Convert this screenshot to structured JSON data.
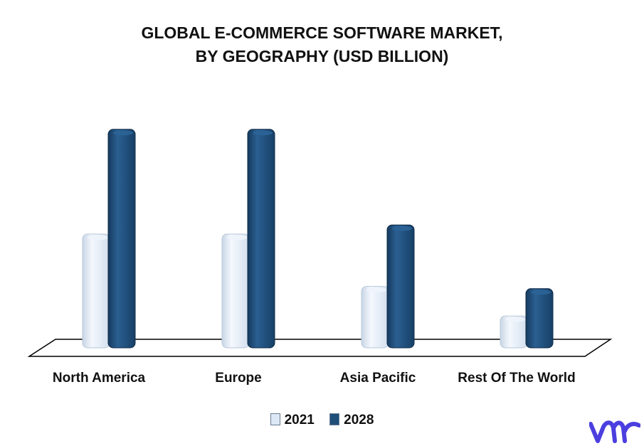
{
  "chart_data": {
    "type": "bar",
    "title": "GLOBAL E-COMMERCE SOFTWARE MARKET,",
    "subtitle": "BY GEOGRAPHY (USD BILLION)",
    "categories": [
      "North America",
      "Europe",
      "Asia Pacific",
      "Rest Of The World"
    ],
    "series": [
      {
        "name": "2021",
        "values": [
          5.0,
          5.0,
          2.7,
          1.4
        ],
        "color": "#dce8f5"
      },
      {
        "name": "2028",
        "values": [
          9.6,
          9.6,
          5.4,
          2.6
        ],
        "color": "#1f4e79"
      }
    ],
    "ylim": [
      0,
      10
    ],
    "grid": false,
    "legend_position": "bottom",
    "style": "3d-cylinder"
  },
  "logo": {
    "name": "vmr-logo-icon",
    "color": "#4b3fe0"
  }
}
